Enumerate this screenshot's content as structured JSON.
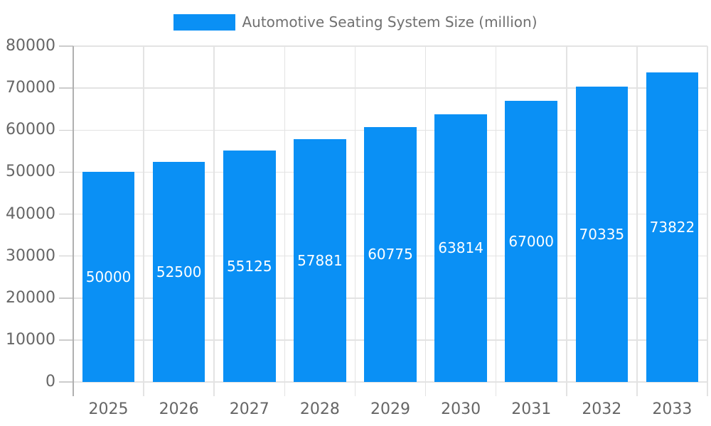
{
  "legend": {
    "label": "Automotive Seating System Size (million)"
  },
  "chart_data": {
    "type": "bar",
    "title": "Automotive Seating System Size (million)",
    "categories": [
      "2025",
      "2026",
      "2027",
      "2028",
      "2029",
      "2030",
      "2031",
      "2032",
      "2033"
    ],
    "series": [
      {
        "name": "Automotive Seating System Size (million)",
        "values": [
          50000,
          52500,
          55125,
          57881,
          60775,
          63814,
          67000,
          70335,
          73822
        ]
      }
    ],
    "bar_value_labels": [
      "50000",
      "52500",
      "55125",
      "57881",
      "60775",
      "63814",
      "67000",
      "70335",
      "73822"
    ],
    "xlabel": "",
    "ylabel": "",
    "ylim": [
      0,
      80000
    ],
    "yticks": [
      0,
      10000,
      20000,
      30000,
      40000,
      50000,
      60000,
      70000,
      80000
    ],
    "ytick_labels": [
      "0",
      "10000",
      "20000",
      "30000",
      "40000",
      "50000",
      "60000",
      "70000",
      "80000"
    ],
    "grid": true,
    "legend_position": "top-center",
    "colors": {
      "bar": "#0a90f5",
      "bar_label_text": "#ffffff",
      "axis_text": "#666666",
      "legend_text": "#707070",
      "gridline": "#e3e3e3",
      "axis_line": "#b0b0b0",
      "tick": "#cccccc",
      "background": "#ffffff"
    }
  }
}
